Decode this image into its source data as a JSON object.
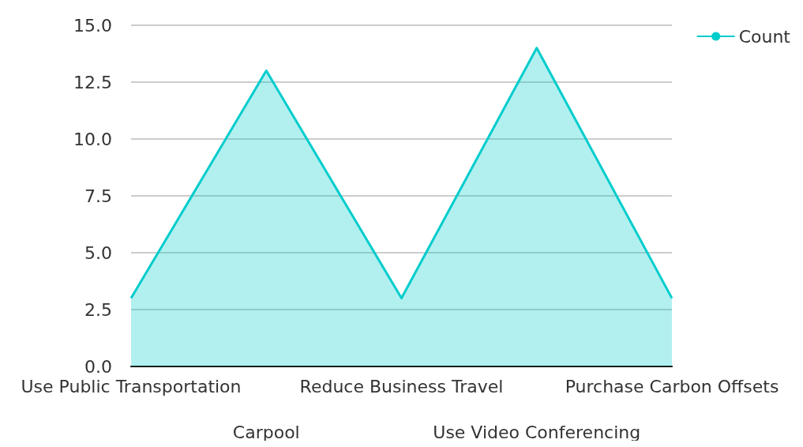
{
  "chart_data": {
    "type": "area",
    "categories": [
      "Use Public Transportation",
      "Carpool",
      "Reduce Business Travel",
      "Use Video Conferencing",
      "Purchase Carbon Offsets"
    ],
    "series": [
      {
        "name": "Count",
        "color": "#00cccc",
        "values": [
          3,
          13,
          3,
          14,
          3
        ]
      }
    ],
    "ylim": [
      0,
      15
    ],
    "yticks": [
      {
        "value": 0,
        "label": "0.0"
      },
      {
        "value": 2.5,
        "label": "2.5"
      },
      {
        "value": 5,
        "label": "5.0"
      },
      {
        "value": 7.5,
        "label": "7.5"
      },
      {
        "value": 10,
        "label": "10.0"
      },
      {
        "value": 12.5,
        "label": "12.5"
      },
      {
        "value": 15,
        "label": "15.0"
      }
    ],
    "grid": "y",
    "legend": "top right"
  }
}
